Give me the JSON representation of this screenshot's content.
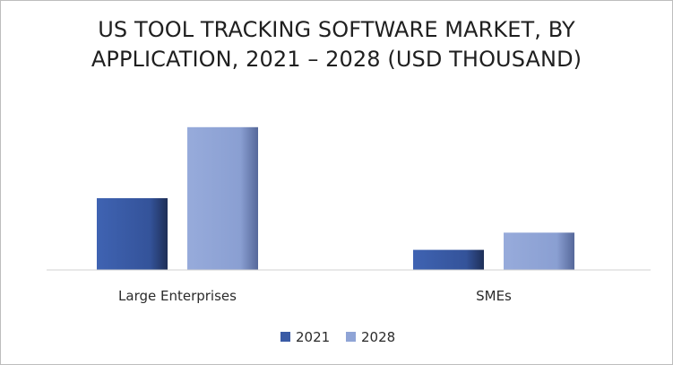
{
  "chart_data": {
    "type": "bar",
    "title_lines": [
      "US TOOL TRACKING SOFTWARE MARKET, BY",
      "APPLICATION, 2021 – 2028 (USD THOUSAND)"
    ],
    "categories": [
      "Large Enterprises",
      "SMEs"
    ],
    "series": [
      {
        "name": "2021",
        "values": [
          1000,
          280
        ],
        "color": "#3a5ba5"
      },
      {
        "name": "2028",
        "values": [
          1990,
          520
        ],
        "color": "#8fa4d6"
      }
    ],
    "ylim": [
      0,
      2000
    ],
    "grid": false,
    "legend_position": "bottom"
  }
}
